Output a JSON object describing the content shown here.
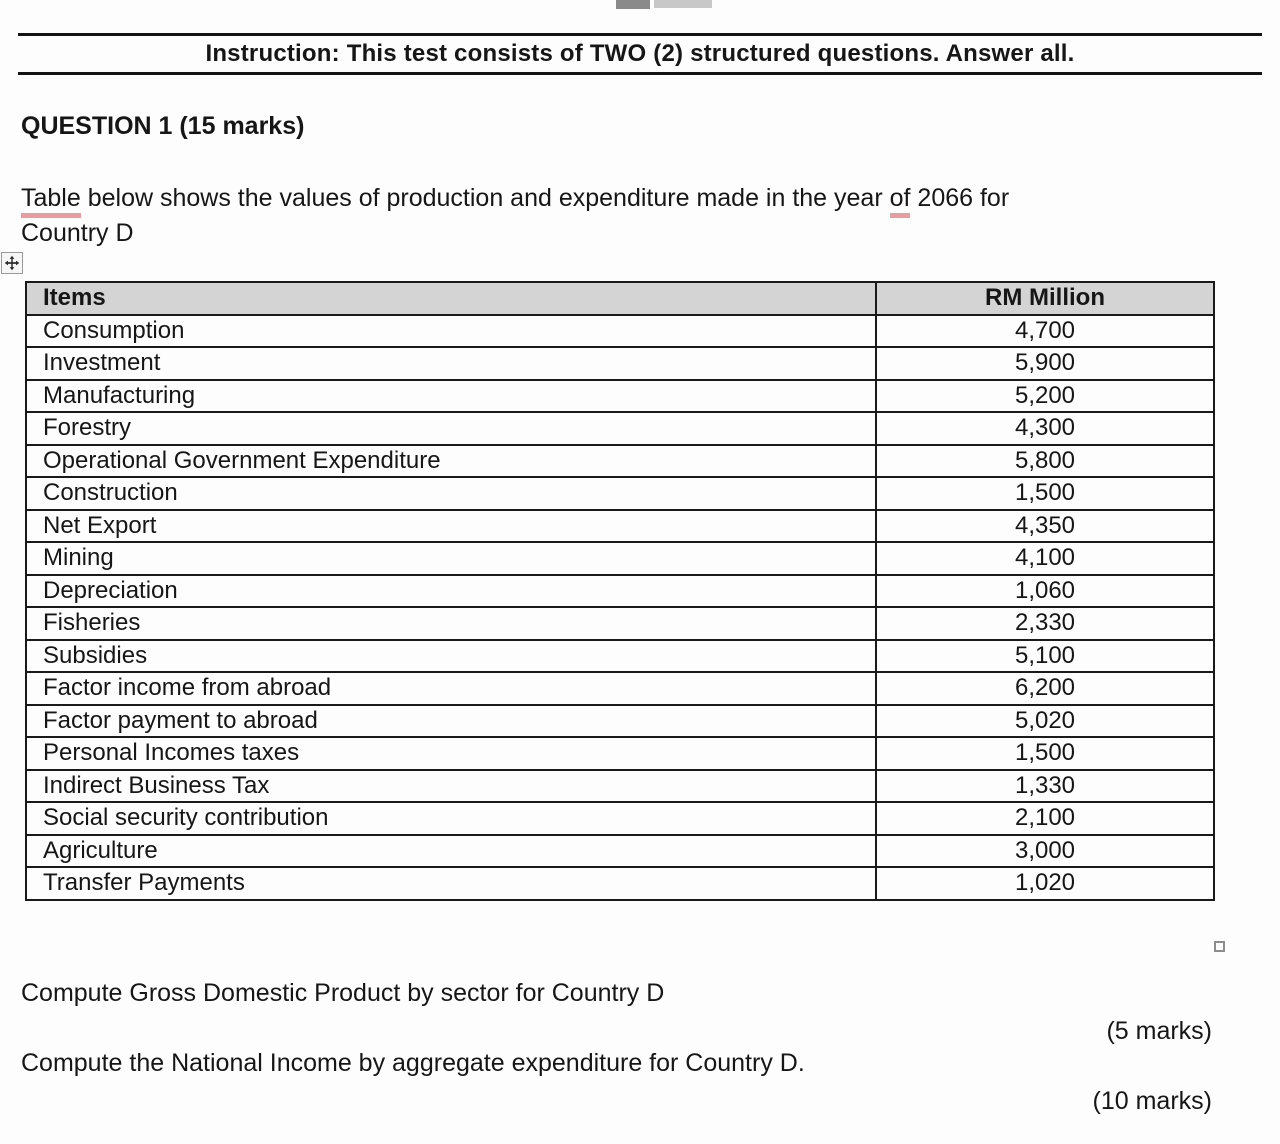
{
  "instruction": "Instruction: This test consists of TWO (2) structured questions. Answer all.",
  "question1": {
    "heading": "QUESTION 1 (15 marks)",
    "intro_segments": [
      {
        "text": "Table",
        "spellcheck": true
      },
      {
        "text": " below shows the values of production and expenditure made in the year ",
        "spellcheck": false
      },
      {
        "text": "of",
        "spellcheck": true
      },
      {
        "text": " 2066 for",
        "spellcheck": false
      },
      {
        "br": true
      },
      {
        "text": "Country D",
        "spellcheck": false
      }
    ]
  },
  "table": {
    "headers": [
      "Items",
      "RM Million"
    ],
    "rows": [
      [
        "Consumption",
        "4,700"
      ],
      [
        "Investment",
        "5,900"
      ],
      [
        "Manufacturing",
        "5,200"
      ],
      [
        "Forestry",
        "4,300"
      ],
      [
        "Operational Government Expenditure",
        "5,800"
      ],
      [
        "Construction",
        "1,500"
      ],
      [
        "Net Export",
        "4,350"
      ],
      [
        "Mining",
        "4,100"
      ],
      [
        "Depreciation",
        "1,060"
      ],
      [
        "Fisheries",
        "2,330"
      ],
      [
        "Subsidies",
        "5,100"
      ],
      [
        "Factor income from abroad",
        "6,200"
      ],
      [
        "Factor payment to abroad",
        "5,020"
      ],
      [
        "Personal Incomes taxes",
        "1,500"
      ],
      [
        "Indirect Business Tax",
        "1,330"
      ],
      [
        "Social security contribution",
        "2,100"
      ],
      [
        "Agriculture",
        "3,000"
      ],
      [
        "Transfer Payments",
        "1,020"
      ]
    ]
  },
  "tasks": [
    {
      "text": "Compute Gross Domestic Product by sector for Country D",
      "marks": "(5 marks)"
    },
    {
      "text": "Compute the National Income by aggregate expenditure for Country D.",
      "marks": "(10 marks)"
    }
  ],
  "icons": {
    "move_handle": "table-move-handle-icon",
    "resize_handle": "table-resize-handle"
  },
  "colors": {
    "header_bg": "#d4d4d4",
    "border": "#1a1a1a",
    "spellcheck_underline": "#ec9aa2",
    "page_bg": "#fdfdfd",
    "text": "#161616"
  }
}
